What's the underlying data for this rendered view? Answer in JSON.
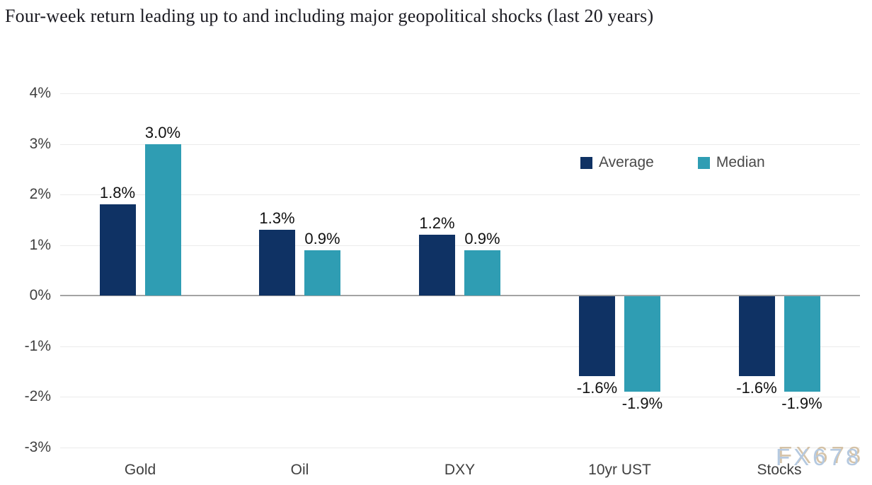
{
  "title": "Four-week return leading up to and including major geopolitical shocks (last 20 years)",
  "watermark": "FX678",
  "colors": {
    "average": "#0f3264",
    "median": "#2f9db3",
    "gridline": "#ebebeb",
    "zero_line": "#a3a3a3",
    "axis_text": "#3f3f3f",
    "value_text": "#111111",
    "legend_text": "#4a4a4a",
    "title_text": "#1a1a21",
    "watermark_blue": "#b5c9e0",
    "watermark_tan": "#c8b08c"
  },
  "legend": {
    "position": "top-right",
    "items": [
      {
        "label": "Average",
        "color_key": "average"
      },
      {
        "label": "Median",
        "color_key": "median"
      }
    ]
  },
  "y_axis": {
    "tick_labels": [
      "4%",
      "3%",
      "2%",
      "1%",
      "0%",
      "-1%",
      "-2%",
      "-3%"
    ],
    "tick_values": [
      4,
      3,
      2,
      1,
      0,
      -1,
      -2,
      -3
    ]
  },
  "chart_data": {
    "type": "bar",
    "title": "Four-week return leading up to and including major geopolitical shocks (last 20 years)",
    "categories": [
      "Gold",
      "Oil",
      "DXY",
      "10yr UST",
      "Stocks"
    ],
    "series": [
      {
        "name": "Average",
        "color_key": "average",
        "values": [
          1.8,
          1.3,
          1.2,
          -1.6,
          -1.6
        ],
        "labels": [
          "1.8%",
          "1.3%",
          "1.2%",
          "-1.6%",
          "-1.6%"
        ]
      },
      {
        "name": "Median",
        "color_key": "median",
        "values": [
          3.0,
          0.9,
          0.9,
          -1.9,
          -1.9
        ],
        "labels": [
          "3.0%",
          "0.9%",
          "0.9%",
          "-1.9%",
          "-1.9%"
        ]
      }
    ],
    "xlabel": "",
    "ylabel": "",
    "ylim": [
      -3,
      4
    ],
    "grid": true,
    "value_labels_shown": true,
    "legend_position": "top-right"
  }
}
